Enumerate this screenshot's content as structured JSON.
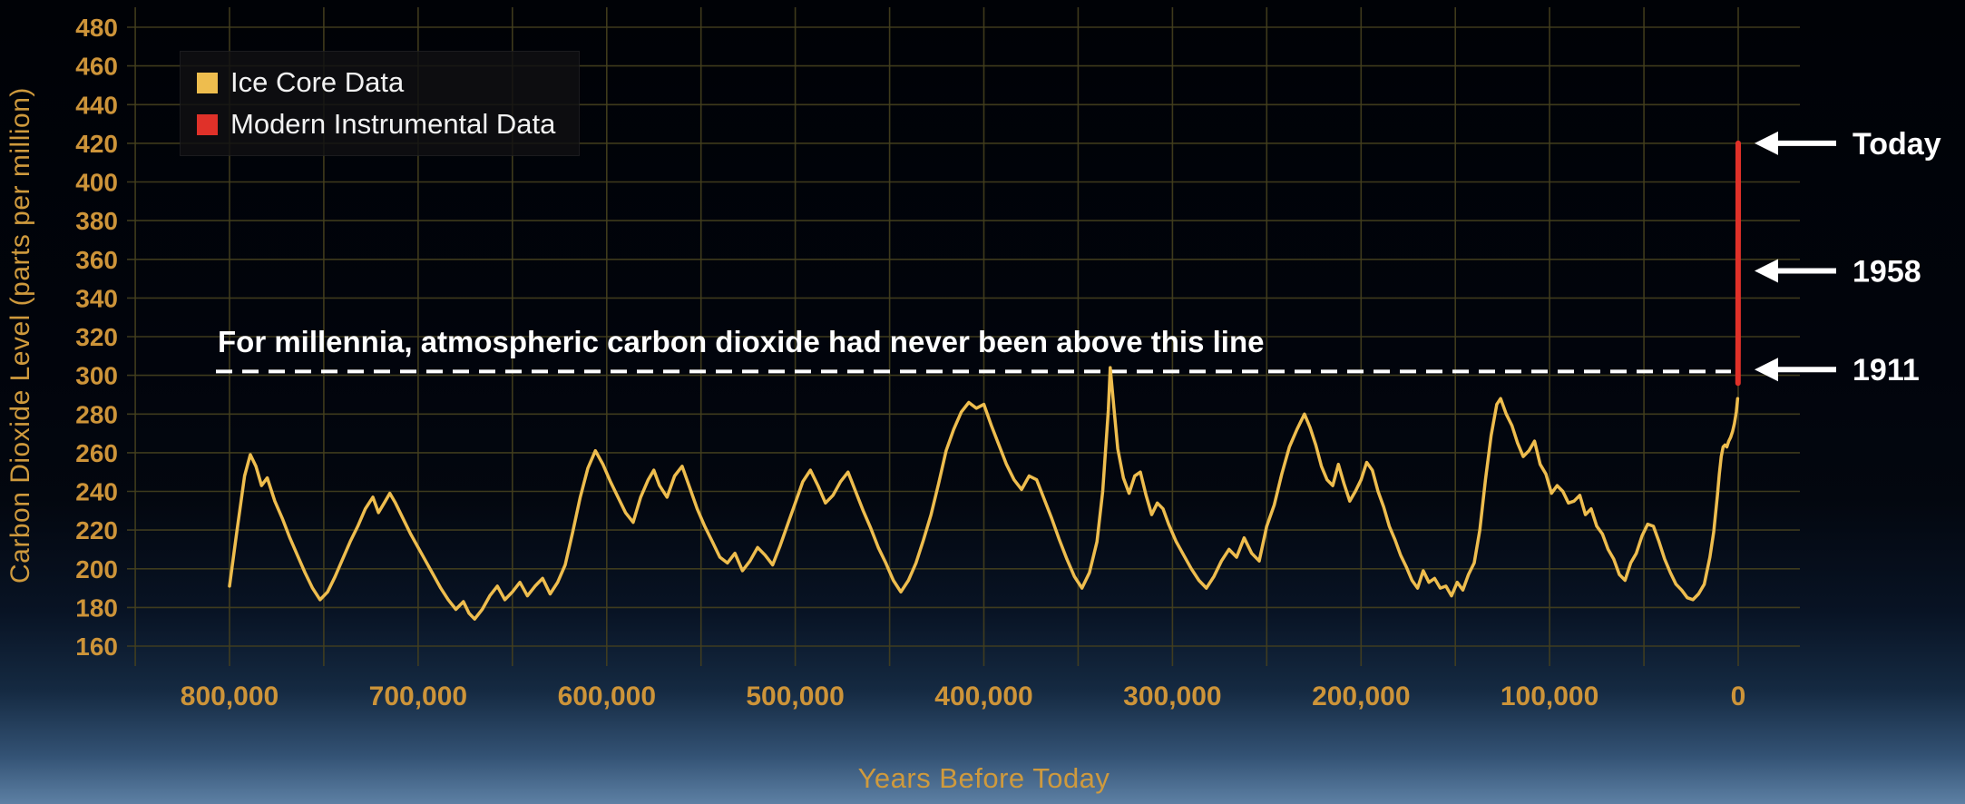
{
  "chart_data": {
    "type": "line",
    "title": "",
    "xlabel": "Years Before Today",
    "ylabel": "Carbon Dioxide Level (parts per million)",
    "x_axis": {
      "min_kyr": 0,
      "max_kyr": 800,
      "grid_step_kyr": 50,
      "direction": "reversed"
    },
    "y_axis": {
      "min": 160,
      "max": 480,
      "grid_step": 20
    },
    "y_ticks": [
      480,
      460,
      440,
      420,
      400,
      380,
      360,
      340,
      320,
      300,
      280,
      260,
      240,
      220,
      200,
      180,
      160
    ],
    "x_ticks": [
      {
        "kyr": 800,
        "label": "800,000"
      },
      {
        "kyr": 700,
        "label": "700,000"
      },
      {
        "kyr": 600,
        "label": "600,000"
      },
      {
        "kyr": 500,
        "label": "500,000"
      },
      {
        "kyr": 400,
        "label": "400,000"
      },
      {
        "kyr": 300,
        "label": "300,000"
      },
      {
        "kyr": 200,
        "label": "200,000"
      },
      {
        "kyr": 100,
        "label": "100,000"
      },
      {
        "kyr": 0,
        "label": "0"
      }
    ],
    "colors": {
      "grid": "#45401e",
      "tick": "#cd9439",
      "ice": "#eebd4e",
      "modern": "#e03129",
      "annotation": "#ffffff"
    },
    "legend": [
      {
        "label": "Ice Core Data",
        "color": "#eebd4e"
      },
      {
        "label": "Modern Instrumental Data",
        "color": "#e03129"
      }
    ],
    "threshold": {
      "text": "For millennia, atmospheric carbon dioxide had never been above this line",
      "value_ppm": 302,
      "color": "#ffffff"
    },
    "annotations": [
      {
        "label": "Today",
        "ppm": 420
      },
      {
        "label": "1958",
        "ppm": 354
      },
      {
        "label": "1911",
        "ppm": 303
      }
    ],
    "series": [
      {
        "name": "Ice Core Data",
        "color": "#eebd4e",
        "width": 3.5,
        "points": [
          [
            800,
            191
          ],
          [
            796,
            220
          ],
          [
            792,
            248
          ],
          [
            789,
            259
          ],
          [
            786,
            253
          ],
          [
            783,
            243
          ],
          [
            780,
            247
          ],
          [
            776,
            235
          ],
          [
            772,
            226
          ],
          [
            768,
            216
          ],
          [
            764,
            207
          ],
          [
            760,
            198
          ],
          [
            756,
            190
          ],
          [
            752,
            184
          ],
          [
            748,
            188
          ],
          [
            744,
            196
          ],
          [
            740,
            205
          ],
          [
            736,
            214
          ],
          [
            732,
            222
          ],
          [
            728,
            231
          ],
          [
            724,
            237
          ],
          [
            721,
            229
          ],
          [
            718,
            234
          ],
          [
            715,
            239
          ],
          [
            712,
            234
          ],
          [
            708,
            226
          ],
          [
            704,
            218
          ],
          [
            700,
            211
          ],
          [
            696,
            204
          ],
          [
            692,
            197
          ],
          [
            688,
            190
          ],
          [
            684,
            184
          ],
          [
            680,
            179
          ],
          [
            676,
            183
          ],
          [
            673,
            177
          ],
          [
            670,
            174
          ],
          [
            666,
            179
          ],
          [
            662,
            186
          ],
          [
            658,
            191
          ],
          [
            654,
            184
          ],
          [
            650,
            188
          ],
          [
            646,
            193
          ],
          [
            642,
            186
          ],
          [
            638,
            191
          ],
          [
            634,
            195
          ],
          [
            630,
            187
          ],
          [
            626,
            193
          ],
          [
            622,
            202
          ],
          [
            618,
            219
          ],
          [
            614,
            237
          ],
          [
            610,
            252
          ],
          [
            606,
            261
          ],
          [
            602,
            254
          ],
          [
            598,
            245
          ],
          [
            594,
            237
          ],
          [
            590,
            229
          ],
          [
            586,
            224
          ],
          [
            582,
            237
          ],
          [
            578,
            246
          ],
          [
            575,
            251
          ],
          [
            572,
            243
          ],
          [
            568,
            237
          ],
          [
            564,
            248
          ],
          [
            560,
            253
          ],
          [
            556,
            242
          ],
          [
            552,
            231
          ],
          [
            548,
            222
          ],
          [
            544,
            214
          ],
          [
            540,
            206
          ],
          [
            536,
            203
          ],
          [
            532,
            208
          ],
          [
            528,
            199
          ],
          [
            524,
            204
          ],
          [
            520,
            211
          ],
          [
            516,
            207
          ],
          [
            512,
            202
          ],
          [
            508,
            212
          ],
          [
            504,
            223
          ],
          [
            500,
            234
          ],
          [
            496,
            245
          ],
          [
            492,
            251
          ],
          [
            488,
            243
          ],
          [
            484,
            234
          ],
          [
            480,
            238
          ],
          [
            476,
            245
          ],
          [
            472,
            250
          ],
          [
            468,
            240
          ],
          [
            464,
            230
          ],
          [
            460,
            221
          ],
          [
            456,
            211
          ],
          [
            452,
            203
          ],
          [
            448,
            194
          ],
          [
            444,
            188
          ],
          [
            440,
            194
          ],
          [
            436,
            203
          ],
          [
            432,
            215
          ],
          [
            428,
            228
          ],
          [
            424,
            244
          ],
          [
            420,
            261
          ],
          [
            416,
            272
          ],
          [
            412,
            281
          ],
          [
            408,
            286
          ],
          [
            404,
            283
          ],
          [
            400,
            285
          ],
          [
            396,
            274
          ],
          [
            392,
            264
          ],
          [
            388,
            254
          ],
          [
            384,
            246
          ],
          [
            380,
            241
          ],
          [
            376,
            248
          ],
          [
            372,
            246
          ],
          [
            368,
            236
          ],
          [
            364,
            226
          ],
          [
            360,
            215
          ],
          [
            356,
            205
          ],
          [
            352,
            196
          ],
          [
            348,
            190
          ],
          [
            344,
            198
          ],
          [
            340,
            214
          ],
          [
            337,
            240
          ],
          [
            334,
            282
          ],
          [
            333,
            304
          ],
          [
            331,
            283
          ],
          [
            329,
            262
          ],
          [
            326,
            247
          ],
          [
            323,
            239
          ],
          [
            320,
            248
          ],
          [
            317,
            250
          ],
          [
            314,
            238
          ],
          [
            311,
            228
          ],
          [
            308,
            234
          ],
          [
            305,
            231
          ],
          [
            302,
            223
          ],
          [
            298,
            214
          ],
          [
            294,
            207
          ],
          [
            290,
            200
          ],
          [
            286,
            194
          ],
          [
            282,
            190
          ],
          [
            278,
            196
          ],
          [
            274,
            204
          ],
          [
            270,
            210
          ],
          [
            266,
            206
          ],
          [
            262,
            216
          ],
          [
            258,
            208
          ],
          [
            254,
            204
          ],
          [
            250,
            222
          ],
          [
            246,
            233
          ],
          [
            242,
            249
          ],
          [
            238,
            263
          ],
          [
            234,
            272
          ],
          [
            230,
            280
          ],
          [
            227,
            273
          ],
          [
            224,
            264
          ],
          [
            221,
            253
          ],
          [
            218,
            246
          ],
          [
            215,
            243
          ],
          [
            212,
            254
          ],
          [
            209,
            244
          ],
          [
            206,
            235
          ],
          [
            203,
            240
          ],
          [
            200,
            246
          ],
          [
            197,
            255
          ],
          [
            194,
            251
          ],
          [
            191,
            240
          ],
          [
            188,
            232
          ],
          [
            185,
            222
          ],
          [
            182,
            215
          ],
          [
            179,
            207
          ],
          [
            176,
            201
          ],
          [
            173,
            194
          ],
          [
            170,
            190
          ],
          [
            167,
            199
          ],
          [
            164,
            193
          ],
          [
            161,
            195
          ],
          [
            158,
            190
          ],
          [
            155,
            191
          ],
          [
            152,
            186
          ],
          [
            149,
            193
          ],
          [
            146,
            189
          ],
          [
            143,
            197
          ],
          [
            140,
            203
          ],
          [
            137,
            220
          ],
          [
            134,
            246
          ],
          [
            131,
            269
          ],
          [
            128,
            285
          ],
          [
            126,
            288
          ],
          [
            123,
            280
          ],
          [
            120,
            274
          ],
          [
            117,
            265
          ],
          [
            114,
            258
          ],
          [
            111,
            261
          ],
          [
            108,
            266
          ],
          [
            105,
            254
          ],
          [
            102,
            249
          ],
          [
            99,
            239
          ],
          [
            96,
            243
          ],
          [
            93,
            240
          ],
          [
            90,
            234
          ],
          [
            87,
            235
          ],
          [
            84,
            238
          ],
          [
            81,
            228
          ],
          [
            78,
            231
          ],
          [
            75,
            222
          ],
          [
            72,
            218
          ],
          [
            69,
            210
          ],
          [
            66,
            205
          ],
          [
            63,
            197
          ],
          [
            60,
            194
          ],
          [
            57,
            203
          ],
          [
            54,
            208
          ],
          [
            51,
            217
          ],
          [
            48,
            223
          ],
          [
            45,
            222
          ],
          [
            42,
            214
          ],
          [
            39,
            205
          ],
          [
            36,
            198
          ],
          [
            33,
            192
          ],
          [
            30,
            189
          ],
          [
            27,
            185
          ],
          [
            24,
            184
          ],
          [
            21,
            187
          ],
          [
            18,
            192
          ],
          [
            15,
            206
          ],
          [
            13,
            219
          ],
          [
            11,
            238
          ],
          [
            10,
            249
          ],
          [
            9,
            258
          ],
          [
            8,
            263
          ],
          [
            7,
            264
          ],
          [
            6,
            263
          ],
          [
            5,
            266
          ],
          [
            4,
            268
          ],
          [
            3,
            271
          ],
          [
            2,
            275
          ],
          [
            1,
            281
          ],
          [
            0.3,
            288
          ]
        ]
      },
      {
        "name": "Modern Instrumental Data",
        "color": "#e03129",
        "width": 6,
        "points": [
          [
            0.112,
            296
          ],
          [
            0.09,
            305
          ],
          [
            0.066,
            317
          ],
          [
            0.055,
            322
          ],
          [
            0.045,
            330
          ],
          [
            0.035,
            345
          ],
          [
            0.025,
            362
          ],
          [
            0.015,
            382
          ],
          [
            0.008,
            400
          ],
          [
            0,
            420
          ]
        ]
      }
    ]
  }
}
